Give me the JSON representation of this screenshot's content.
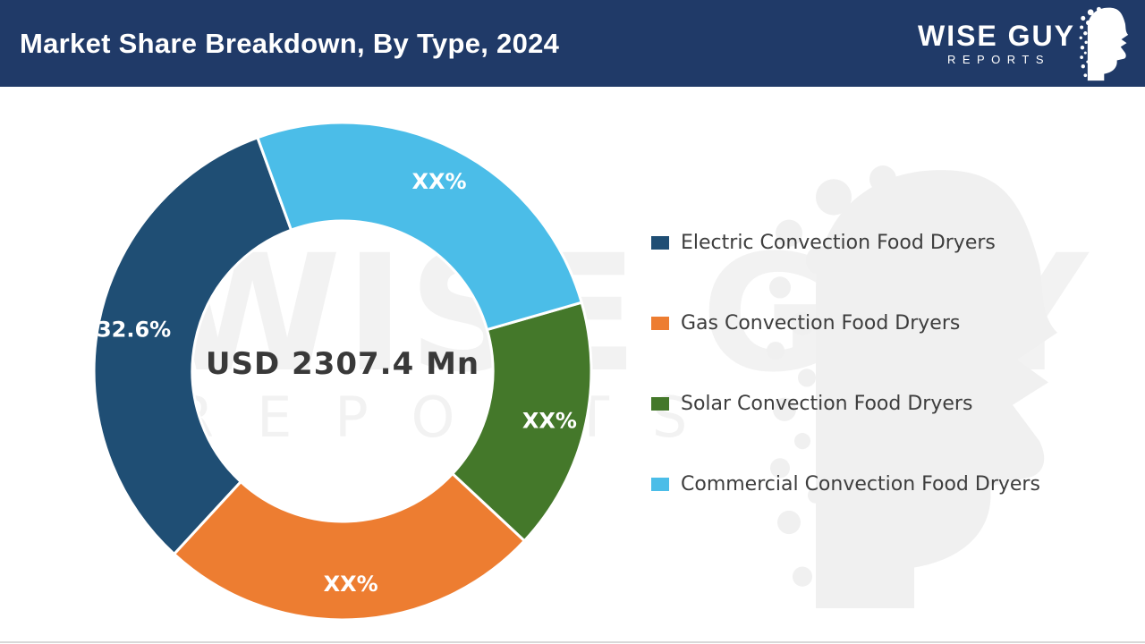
{
  "header": {
    "title": "Market Share Breakdown, By Type, 2024",
    "logo": {
      "line1": "WISE GUY",
      "line2": "REPORTS"
    }
  },
  "watermark": {
    "line1": "WISE GUY",
    "line2": "REPORTS"
  },
  "chart_data": {
    "type": "pie",
    "subtype": "donut",
    "title": "Market Share Breakdown, By Type, 2024",
    "center_label": "USD 2307.4 Mn",
    "start_angle_deg": 110,
    "direction": "counterclockwise",
    "legend_position": "right",
    "series": [
      {
        "name": "Electric Convection Food Dryers",
        "value_pct": 32.6,
        "label": "32.6%",
        "color": "#1f4e74"
      },
      {
        "name": "Gas Convection Food Dryers",
        "value_pct": 24.9,
        "label": "XX%",
        "color": "#ed7d31"
      },
      {
        "name": "Solar Convection Food Dryers",
        "value_pct": 16.4,
        "label": "XX%",
        "color": "#44782a"
      },
      {
        "name": "Commercial Convection Food Dryers",
        "value_pct": 26.1,
        "label": "XX%",
        "color": "#4bbde8"
      }
    ]
  },
  "colors": {
    "header_bg": "#203a68",
    "canvas_bg": "#ffffff",
    "watermark": "#f2f2f2",
    "center_text": "#393939",
    "legend_text": "#3d3d3d",
    "bottom_rule": "#d8d8d8"
  }
}
